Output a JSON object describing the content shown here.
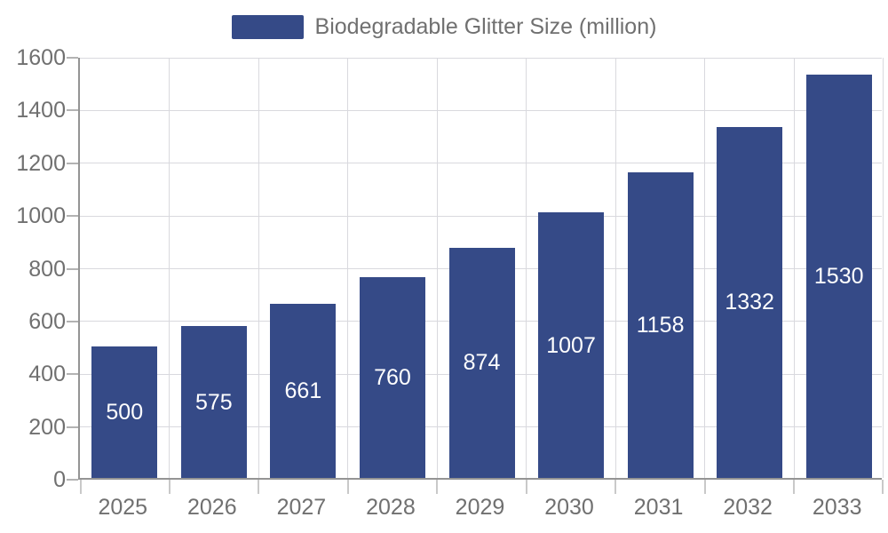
{
  "legend": {
    "label": "Biodegradable Glitter Size (million)"
  },
  "colors": {
    "bar": "#354a87",
    "axis_text": "#707070",
    "grid": "#d9d9de",
    "axis_line": "#949494",
    "bar_label": "#ffffff",
    "background": "#ffffff"
  },
  "chart_data": {
    "type": "bar",
    "title": "",
    "legend_entries": [
      "Biodegradable Glitter Size (million)"
    ],
    "legend_position": "top-center",
    "categories": [
      "2025",
      "2026",
      "2027",
      "2028",
      "2029",
      "2030",
      "2031",
      "2032",
      "2033"
    ],
    "values": [
      500,
      575,
      661,
      760,
      874,
      1007,
      1158,
      1332,
      1530
    ],
    "bar_value_labels": [
      "500",
      "575",
      "661",
      "760",
      "874",
      "1007",
      "1158",
      "1332",
      "1530"
    ],
    "xlabel": "",
    "ylabel": "",
    "ylim": [
      0,
      1600
    ],
    "yticks": [
      0,
      200,
      400,
      600,
      800,
      1000,
      1200,
      1400,
      1600
    ],
    "grid": "on",
    "value_labels_inside_bars": true
  }
}
